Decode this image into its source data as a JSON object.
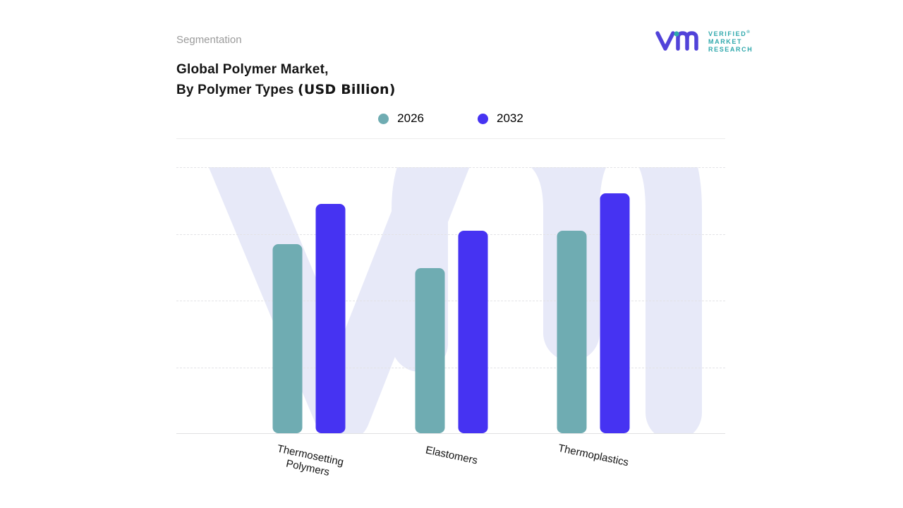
{
  "header": {
    "section_label": "Segmentation",
    "title_line1": "Global Polymer Market,",
    "title_line2": "By Polymer Types",
    "title_unit": "(USD Billion)"
  },
  "logo": {
    "line1": "VERIFIED",
    "registered": "®",
    "line2": "MARKET",
    "line3": "RESEARCH",
    "brand_purple": "#5143d9",
    "brand_teal": "#2fa8ac"
  },
  "legend": [
    {
      "label": "2026",
      "color": "#6facb2"
    },
    {
      "label": "2032",
      "color": "#4633f2"
    }
  ],
  "chart_data": {
    "type": "bar",
    "title": "Global Polymer Market, By Polymer Types (USD Billion)",
    "categories": [
      "Thermosetting Polymers",
      "Elastomers",
      "Thermoplastics"
    ],
    "series": [
      {
        "name": "2026",
        "color": "#6facb2",
        "values": [
          71,
          62,
          76
        ]
      },
      {
        "name": "2032",
        "color": "#4633f2",
        "values": [
          86,
          76,
          90
        ]
      }
    ],
    "xlabel": "",
    "ylabel": "",
    "ylim": [
      0,
      100
    ],
    "grid": "horizontal-dashed",
    "legend_position": "top-center",
    "note": "No numeric axis shown; values estimated relative to plot height on a 0-100 scale."
  }
}
